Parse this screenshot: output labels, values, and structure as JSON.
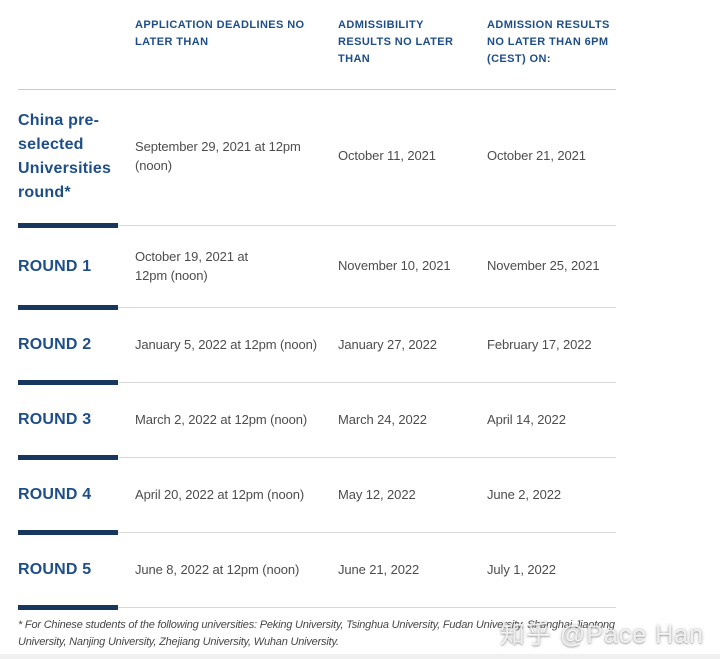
{
  "colors": {
    "navy": "#1d4e89",
    "line": "#17375e",
    "text": "#4d4d4d",
    "separator": "#d9d9d9",
    "background": "#ffffff"
  },
  "table": {
    "headers": [
      "",
      "APPLICATION DEADLINES NO\nLATER THAN",
      "ADMISSIBILITY\nRESULTS NO LATER\nTHAN",
      "ADMISSION RESULTS\nNO LATER THAN 6PM\n(CEST) ON:"
    ],
    "rows": [
      {
        "round": "China pre-\nselected\nUniversities\nround*",
        "deadline": "September 29, 2021 at 12pm\n(noon)",
        "admissibility": "October 11, 2021",
        "admission": "October 21, 2021"
      },
      {
        "round": "ROUND 1",
        "deadline": "October 19, 2021 at\n12pm (noon)",
        "admissibility": "November 10, 2021",
        "admission": "November 25, 2021"
      },
      {
        "round": "ROUND 2",
        "deadline": "January 5, 2022 at 12pm (noon)",
        "admissibility": "January 27, 2022",
        "admission": "February 17, 2022"
      },
      {
        "round": "ROUND 3",
        "deadline": "March 2, 2022 at 12pm (noon)",
        "admissibility": "March 24, 2022",
        "admission": "April 14, 2022"
      },
      {
        "round": "ROUND 4",
        "deadline": "April 20, 2022 at 12pm (noon)",
        "admissibility": "May 12, 2022",
        "admission": "June 2, 2022"
      },
      {
        "round": "ROUND 5",
        "deadline": "June 8, 2022 at 12pm (noon)",
        "admissibility": "June 21, 2022",
        "admission": "July 1, 2022"
      }
    ]
  },
  "footnote": "* For Chinese students of the following universities: Peking University, Tsinghua University, Fudan University, Shanghai Jiaotong\nUniversity, Nanjing University, Zhejiang University, Wuhan University.",
  "watermark": "知乎 @Pace Han"
}
